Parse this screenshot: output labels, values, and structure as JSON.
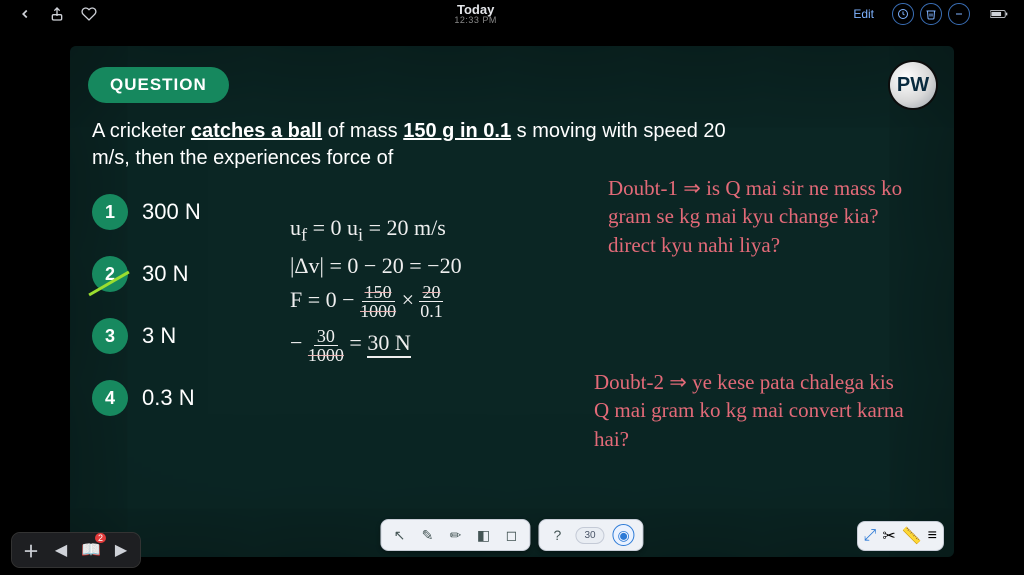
{
  "statusbar": {
    "day": "Today",
    "time": "12:33 PM",
    "edit": "Edit"
  },
  "board": {
    "badge": "QUESTION",
    "logo": "PW",
    "question_html": "A cricketer <span class='u1'>catches a ball</span> of mass <span class='u1'>150 g in 0.1</span> s moving with speed 20 m/s, then the experiences force of",
    "options": [
      {
        "n": "1",
        "label": "300 N",
        "selected": false
      },
      {
        "n": "2",
        "label": "30 N",
        "selected": true
      },
      {
        "n": "3",
        "label": "3 N",
        "selected": false
      },
      {
        "n": "4",
        "label": "0.3 N",
        "selected": false
      }
    ],
    "work": {
      "l1_a": "u",
      "l1_b": "f",
      "l1_c": " = 0   u",
      "l1_d": "i",
      "l1_e": " = 20 m/s",
      "l2": "|Δv| = 0 − 20 = −20",
      "l3_pre": "F = 0 − ",
      "l3_num_top": "150",
      "l3_num_bot": "1000",
      "l3_mid": " × ",
      "l3_num2_top": "20",
      "l3_num2_bot": "0.1",
      "l4_pre": "− ",
      "l4_top": "30",
      "l4_bot": "1000",
      "l4_eq": " = ",
      "l4_ans": "30 N"
    },
    "doubt1": "Doubt-1 ⇒ is Q mai sir ne mass ko gram se kg mai kyu change kia? direct kyu nahi liya?",
    "doubt2": "Doubt-2 ⇒ ye kese pata chalega kis Q mai gram ko kg mai convert karna hai?"
  },
  "tools": {
    "mini_label": "30"
  },
  "nav": {
    "badge": "2"
  },
  "colors": {
    "board_bg": "#0b2624",
    "badge_bg": "#16885e",
    "opt_bg": "#17895f",
    "doubt": "#e36a78",
    "chalk": "#efefef",
    "accent_blue": "#2c7ad6"
  }
}
